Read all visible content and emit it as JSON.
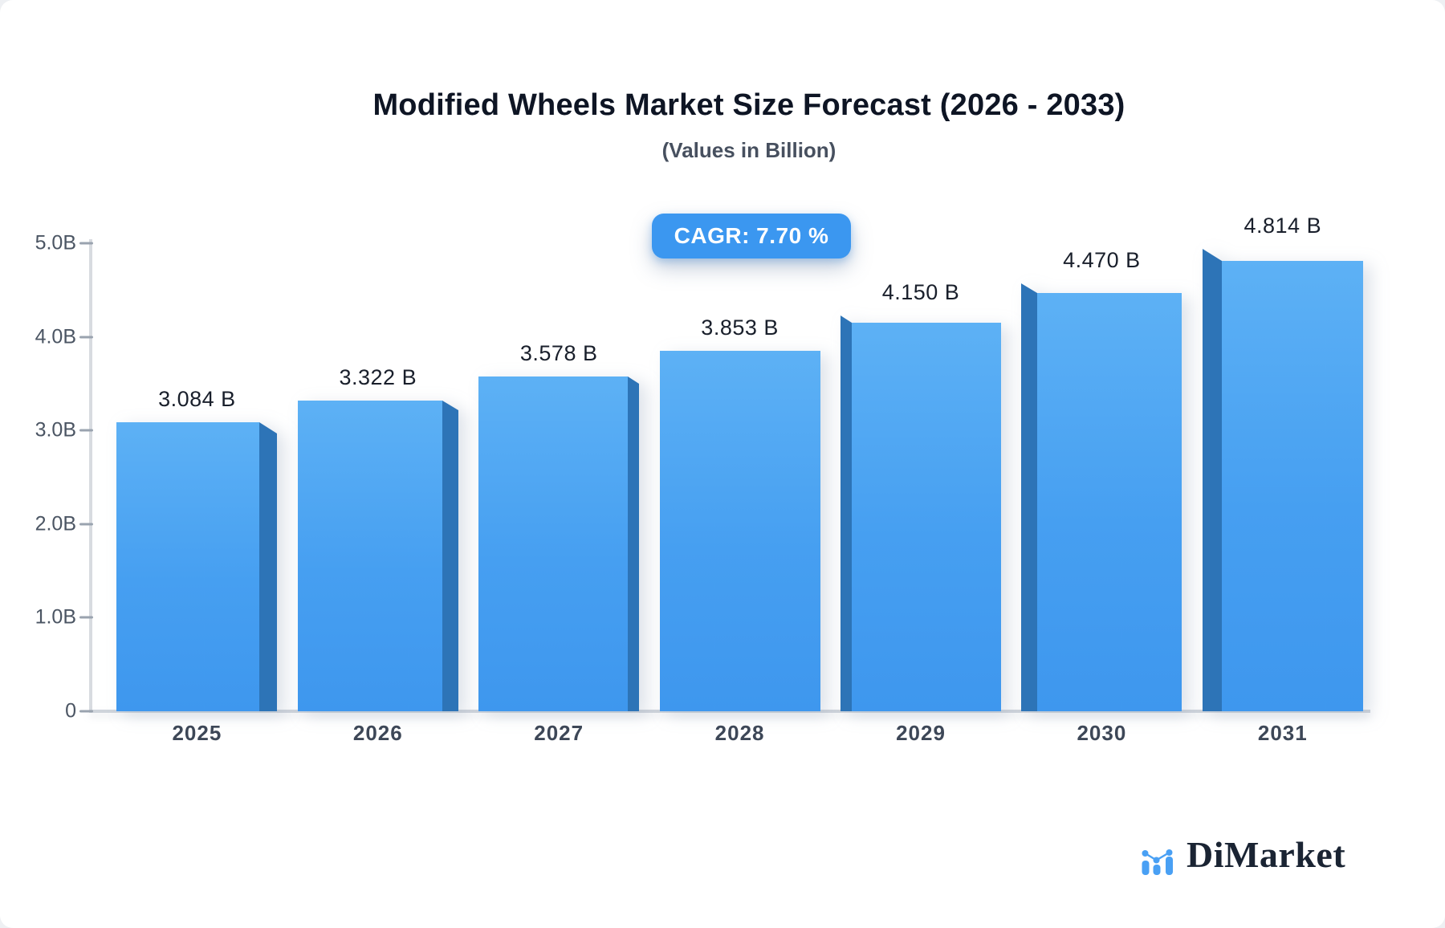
{
  "header": {
    "title": "Modified Wheels Market Size Forecast (2026 - 2033)",
    "subtitle": "(Values in Billion)",
    "cagr_label": "CAGR: 7.70 %"
  },
  "brand": {
    "name": "DiMarket"
  },
  "colors": {
    "accent": "#3b97f0",
    "bar_face_top": "#5db1f5",
    "bar_face_bottom": "#3e97ee",
    "bar_side": "#2d74b7",
    "axis_line": "#d8dbe0",
    "tick": "#9aa3af"
  },
  "chart_data": {
    "type": "bar",
    "title": "Modified Wheels Market Size Forecast (2026 - 2033)",
    "subtitle": "(Values in Billion)",
    "categories": [
      "2025",
      "2026",
      "2027",
      "2028",
      "2029",
      "2030",
      "2031"
    ],
    "values": [
      3.084,
      3.322,
      3.578,
      3.853,
      4.15,
      4.47,
      4.814
    ],
    "bar_labels": [
      "3.084 B",
      "3.322 B",
      "3.578 B",
      "3.853 B",
      "4.150 B",
      "4.470 B",
      "4.814 B"
    ],
    "xlabel": "",
    "ylabel": "",
    "ylim": [
      0,
      5
    ],
    "yticks": [
      0,
      1,
      2,
      3,
      4,
      5
    ],
    "ytick_labels": [
      "0",
      "1.0B",
      "2.0B",
      "3.0B",
      "4.0B",
      "5.0B"
    ],
    "grid": false,
    "legend": false,
    "annotations": [
      "CAGR: 7.70 %"
    ]
  }
}
